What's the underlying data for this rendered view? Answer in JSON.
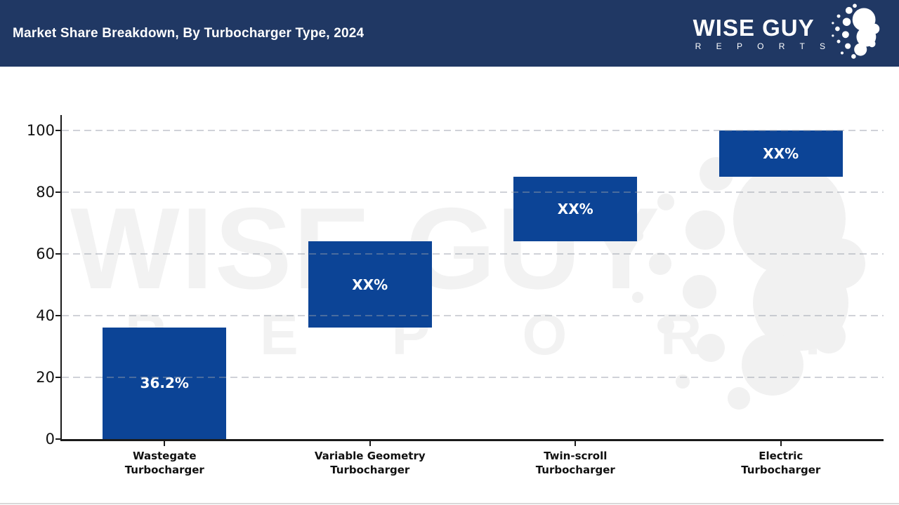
{
  "header": {
    "title": "Market Share Breakdown, By Turbocharger Type, 2024",
    "background_color": "#203864",
    "logo": {
      "line1": "WISE GUY",
      "line2": "R E P O R T S"
    }
  },
  "watermark": {
    "line1": "WISE GUY",
    "line2": "R E P O R T S"
  },
  "chart_data": {
    "type": "bar",
    "subtype": "floating-segment-waterfall",
    "title": "Market Share Breakdown, By Turbocharger Type, 2024",
    "categories": [
      "Wastegate\nTurbocharger",
      "Variable Geometry\nTurbocharger",
      "Twin-scroll\nTurbocharger",
      "Electric\nTurbocharger"
    ],
    "bars": [
      {
        "category": "Wastegate Turbocharger",
        "start": 0,
        "end": 36.2,
        "label": "36.2%"
      },
      {
        "category": "Variable Geometry Turbocharger",
        "start": 36.2,
        "end": 64,
        "label": "XX%"
      },
      {
        "category": "Twin-scroll Turbocharger",
        "start": 64,
        "end": 85,
        "label": "XX%"
      },
      {
        "category": "Electric Turbocharger",
        "start": 85,
        "end": 100,
        "label": "XX%"
      }
    ],
    "xlabel": "",
    "ylabel": "",
    "ylim": [
      0,
      100
    ],
    "yticks": [
      0,
      20,
      40,
      60,
      80,
      100
    ],
    "grid": {
      "axis": "y",
      "style": "dashed"
    },
    "legend": "none",
    "bar_color": "#0c4496",
    "value_label_color": "#ffffff"
  }
}
